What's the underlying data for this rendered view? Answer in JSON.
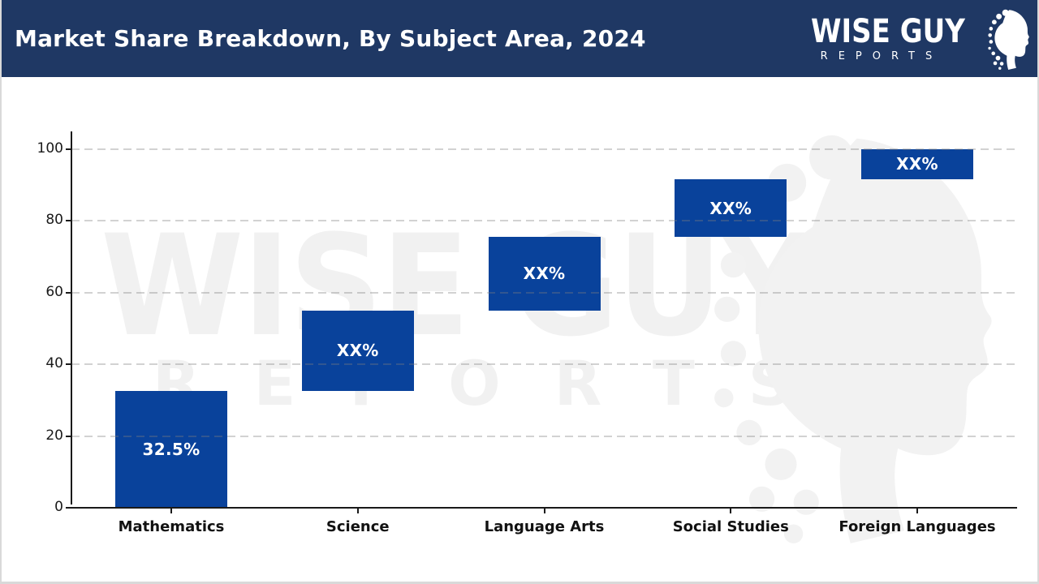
{
  "header": {
    "title": "Market Share Breakdown, By Subject Area, 2024",
    "background_color": "#1f3864",
    "logo": {
      "brand_top": "WISE GUY",
      "brand_bottom": "REPORTS"
    }
  },
  "watermark": {
    "brand_top": "WISE GUY",
    "brand_bottom": "REPORTS"
  },
  "chart_data": {
    "type": "bar",
    "variant": "floating-waterfall",
    "title": "Market Share Breakdown, By Subject Area, 2024",
    "categories": [
      "Mathematics",
      "Science",
      "Language Arts",
      "Social Studies",
      "Foreign Languages"
    ],
    "series": [
      {
        "name": "Market share (%)",
        "segments": [
          {
            "category": "Mathematics",
            "start": 0,
            "end": 32.5,
            "label": "32.5%"
          },
          {
            "category": "Science",
            "start": 32.5,
            "end": 55,
            "label": "XX%"
          },
          {
            "category": "Language Arts",
            "start": 55,
            "end": 75.5,
            "label": "XX%"
          },
          {
            "category": "Social Studies",
            "start": 75.5,
            "end": 91.5,
            "label": "XX%"
          },
          {
            "category": "Foreign Languages",
            "start": 91.5,
            "end": 100,
            "label": "XX%"
          }
        ]
      }
    ],
    "xlabel": "",
    "ylabel": "",
    "y_ticks": [
      0,
      20,
      40,
      60,
      80,
      100
    ],
    "ylim": [
      0,
      105
    ],
    "grid": {
      "axis": "y",
      "style": "dashed"
    },
    "legend": "none",
    "colors": {
      "bar": "#09429b",
      "bar_label": "#ffffff",
      "axis": "#1a1a1a",
      "grid": "#d9d9d9",
      "header_bg": "#1f3864",
      "watermark": "#f1f1f1"
    }
  }
}
